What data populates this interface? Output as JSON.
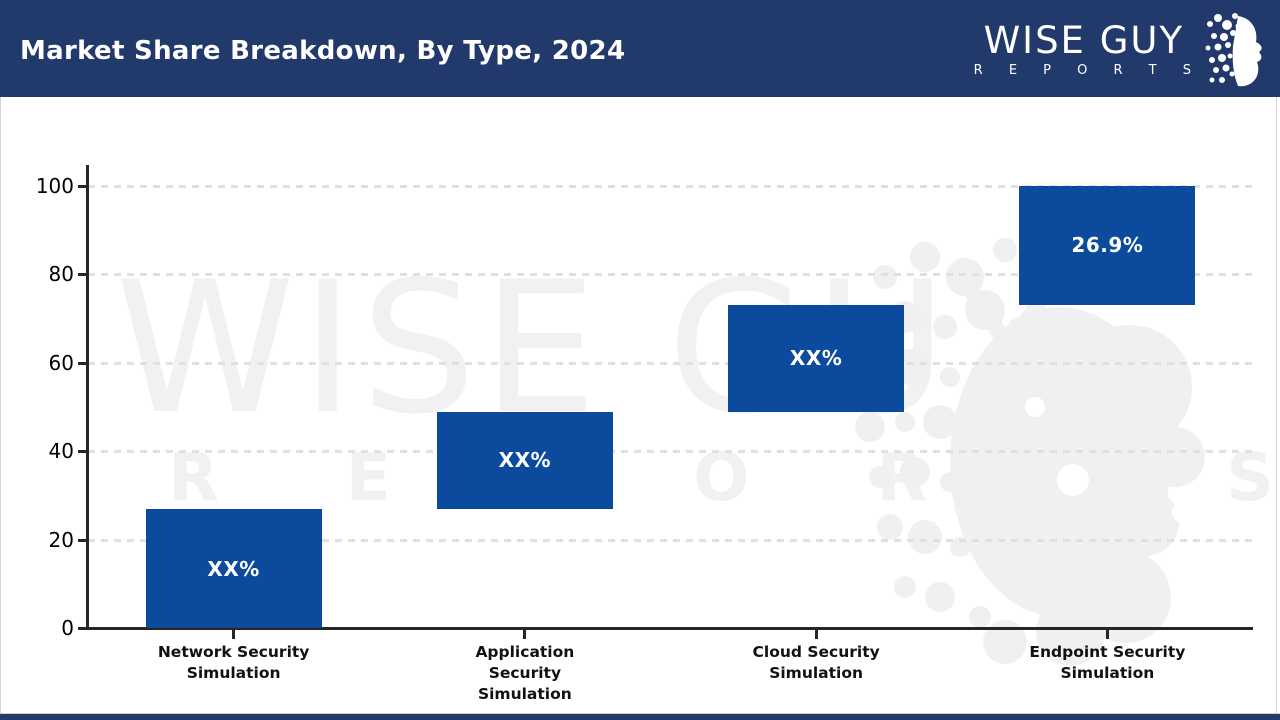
{
  "header": {
    "title": "Market Share Breakdown, By Type, 2024",
    "logo": {
      "line1": "WISE GUY",
      "line2": "R E P O R T S",
      "bg_color": "#22396B",
      "text_color": "#FFFFFF"
    }
  },
  "watermark": {
    "line1": "WISE GUY",
    "line2": "R E P O R T S",
    "color": "#F1F1F3"
  },
  "chart_data": {
    "type": "bar",
    "subtype": "floating-waterfall",
    "title": "Market Share Breakdown, By Type, 2024",
    "categories": [
      "Network Security\nSimulation",
      "Application\nSecurity\nSimulation",
      "Cloud Security\nSimulation",
      "Endpoint Security\nSimulation"
    ],
    "segments": [
      {
        "start": 0,
        "end": 26.9,
        "label": "XX%"
      },
      {
        "start": 26.9,
        "end": 48.9,
        "label": "XX%"
      },
      {
        "start": 48.9,
        "end": 73.1,
        "label": "XX%"
      },
      {
        "start": 73.1,
        "end": 100,
        "label": "26.9%"
      }
    ],
    "yticks": [
      0,
      20,
      40,
      60,
      80,
      100
    ],
    "ylim": [
      0,
      100
    ],
    "xlabel": "",
    "ylabel": "",
    "legend": "none",
    "grid": "horizontal-dashed",
    "bar_color": "#0C4A9E",
    "bar_label_color": "#FFFFFF",
    "axis_color": "#262626",
    "gridline_color": "#E0E0E0"
  }
}
